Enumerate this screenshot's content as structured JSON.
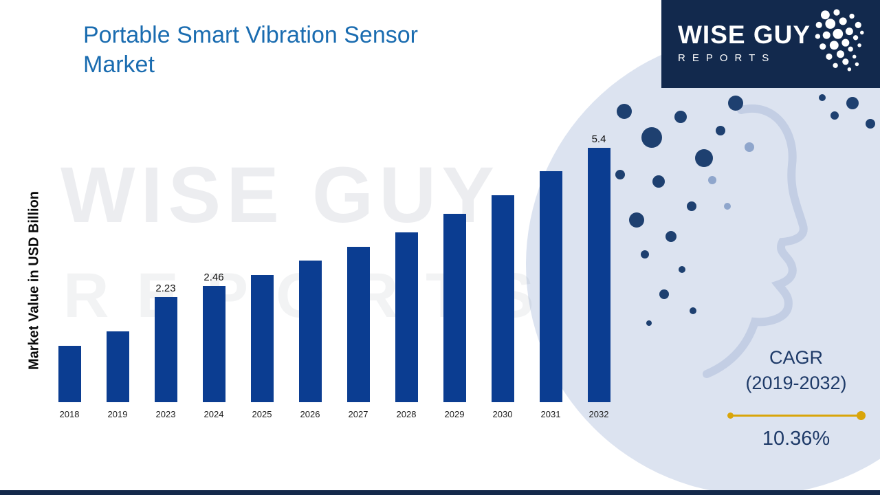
{
  "title": {
    "line1": "Portable Smart Vibration Sensor",
    "line2": "Market"
  },
  "brand": {
    "name": "WISE GUY",
    "sub": "REPORTS"
  },
  "watermark": {
    "line1": "WISE GUY",
    "line2": "REPORTS"
  },
  "cagr": {
    "title": "CAGR",
    "range": "(2019-2032)",
    "value": "10.36%"
  },
  "colors": {
    "accent_blue": "#1a6cb0",
    "bar": "#0b3d91",
    "navy_panel": "#12294d",
    "gold": "#d9a50a",
    "circle": "#dce3f0"
  },
  "chart_data": {
    "type": "bar",
    "title": "Portable Smart Vibration Sensor Market",
    "ylabel": "Market Value in USD Billion",
    "xlabel": "",
    "categories": [
      "2018",
      "2019",
      "2023",
      "2024",
      "2025",
      "2026",
      "2027",
      "2028",
      "2029",
      "2030",
      "2031",
      "2032"
    ],
    "values": [
      1.2,
      1.5,
      2.23,
      2.46,
      2.7,
      3.0,
      3.3,
      3.6,
      4.0,
      4.4,
      4.9,
      5.4
    ],
    "data_labels": {
      "2023": "2.23",
      "2024": "2.46",
      "2032": "5.4"
    },
    "ylim": [
      0,
      5.4
    ],
    "grid": false,
    "legend": null,
    "bar_color": "#0b3d91"
  }
}
